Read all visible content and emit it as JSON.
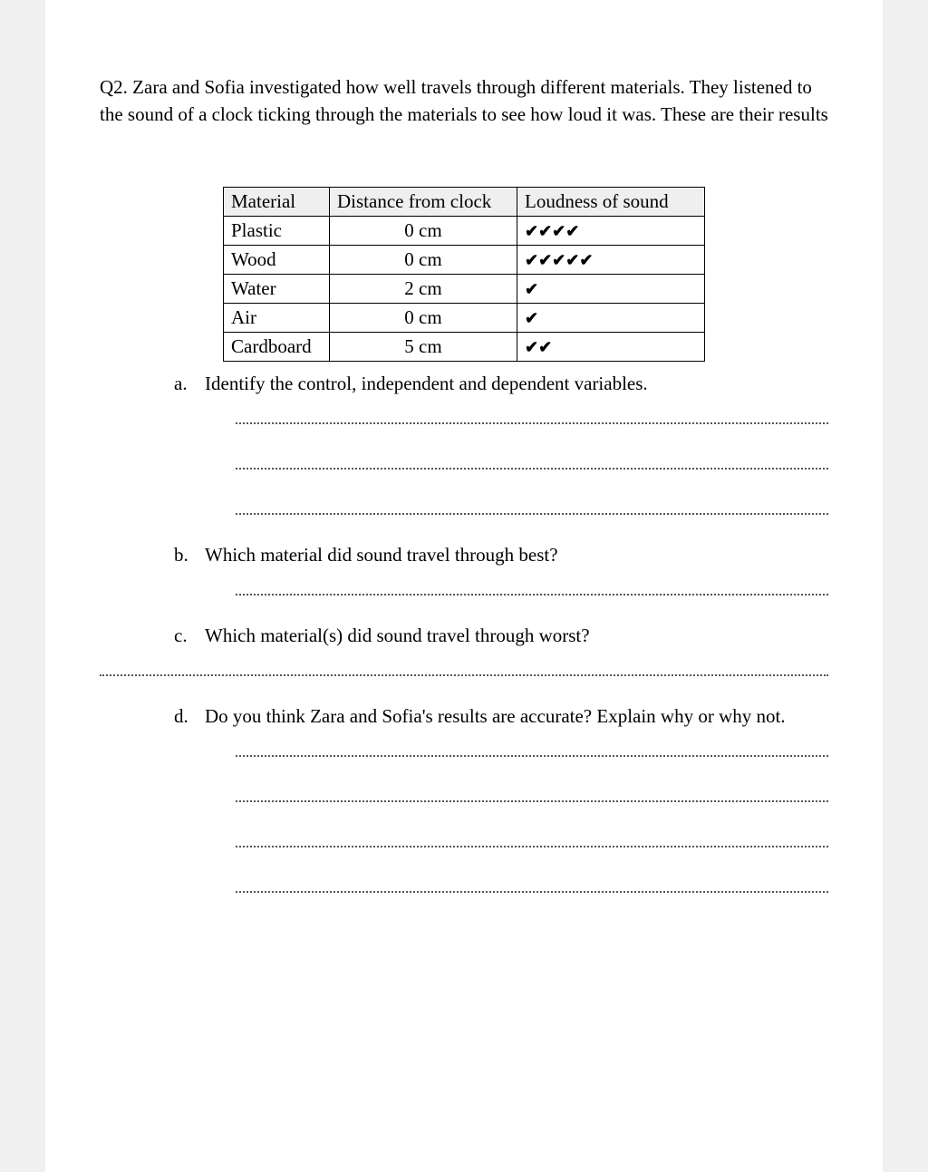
{
  "question": {
    "number": "Q2.",
    "text": "Zara and Sofia investigated how well travels through different materials. They listened to the sound of a clock ticking through the materials to see how loud it was. These are their results"
  },
  "table": {
    "headers": [
      "Material",
      "Distance from clock",
      "Loudness of sound"
    ],
    "rows": [
      {
        "material": "Plastic",
        "distance": "0 cm",
        "ticks": 4
      },
      {
        "material": "Wood",
        "distance": "0 cm",
        "ticks": 5
      },
      {
        "material": "Water",
        "distance": "2 cm",
        "ticks": 1
      },
      {
        "material": "Air",
        "distance": "0 cm",
        "ticks": 1
      },
      {
        "material": "Cardboard",
        "distance": "5   cm",
        "ticks": 2
      }
    ]
  },
  "subquestions": {
    "a": {
      "marker": "a.",
      "text": "Identify the control, independent and dependent variables.",
      "lines": 3,
      "indent": "narrow"
    },
    "b": {
      "marker": "b.",
      "text": "Which material did sound travel through best?",
      "lines": 1,
      "indent": "narrow"
    },
    "c": {
      "marker": "c.",
      "text": "Which material(s) did sound travel through worst?",
      "lines": 1,
      "indent": "wide"
    },
    "d": {
      "marker": "d.",
      "text": "Do you think Zara and Sofia's results are accurate? Explain why or why not.",
      "lines": 4,
      "indent": "narrow"
    }
  },
  "tick_glyph": "✔"
}
